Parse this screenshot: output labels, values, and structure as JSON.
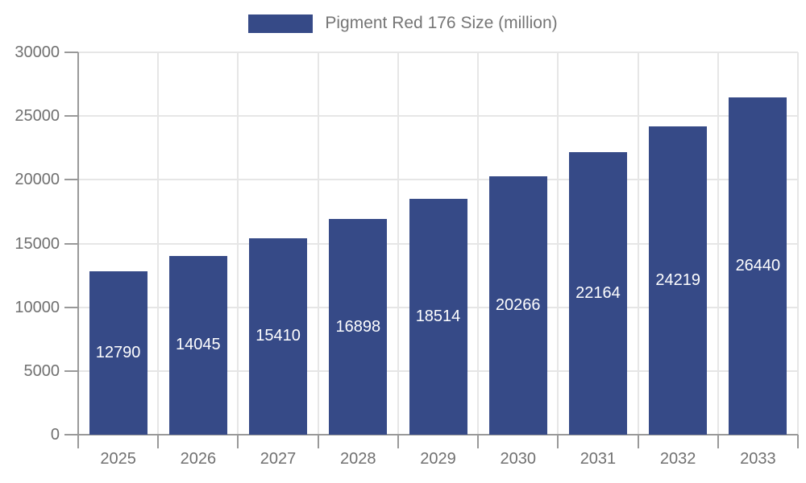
{
  "chart_data": {
    "type": "bar",
    "title": "Pigment Red 176 Size (million)",
    "series_name": "Pigment Red 176 Size (million)",
    "categories": [
      "2025",
      "2026",
      "2027",
      "2028",
      "2029",
      "2030",
      "2031",
      "2032",
      "2033"
    ],
    "values": [
      12790,
      14045,
      15410,
      16898,
      18514,
      20266,
      22164,
      24219,
      26440
    ],
    "xlabel": "",
    "ylabel": "",
    "ylim": [
      0,
      30000
    ],
    "ytick_step": 5000,
    "ytick_labels": [
      "0",
      "5000",
      "10000",
      "15000",
      "20000",
      "25000",
      "30000"
    ],
    "grid": true,
    "legend_position": "top-center",
    "value_labels": "inside-center",
    "colors": {
      "bar": "#364a87",
      "grid_line": "#e6e6e6",
      "axis_line": "#999999",
      "tick_text": "#707070",
      "legend_text": "#757575",
      "value_label_text": "#ffffff",
      "background": "#ffffff"
    }
  }
}
